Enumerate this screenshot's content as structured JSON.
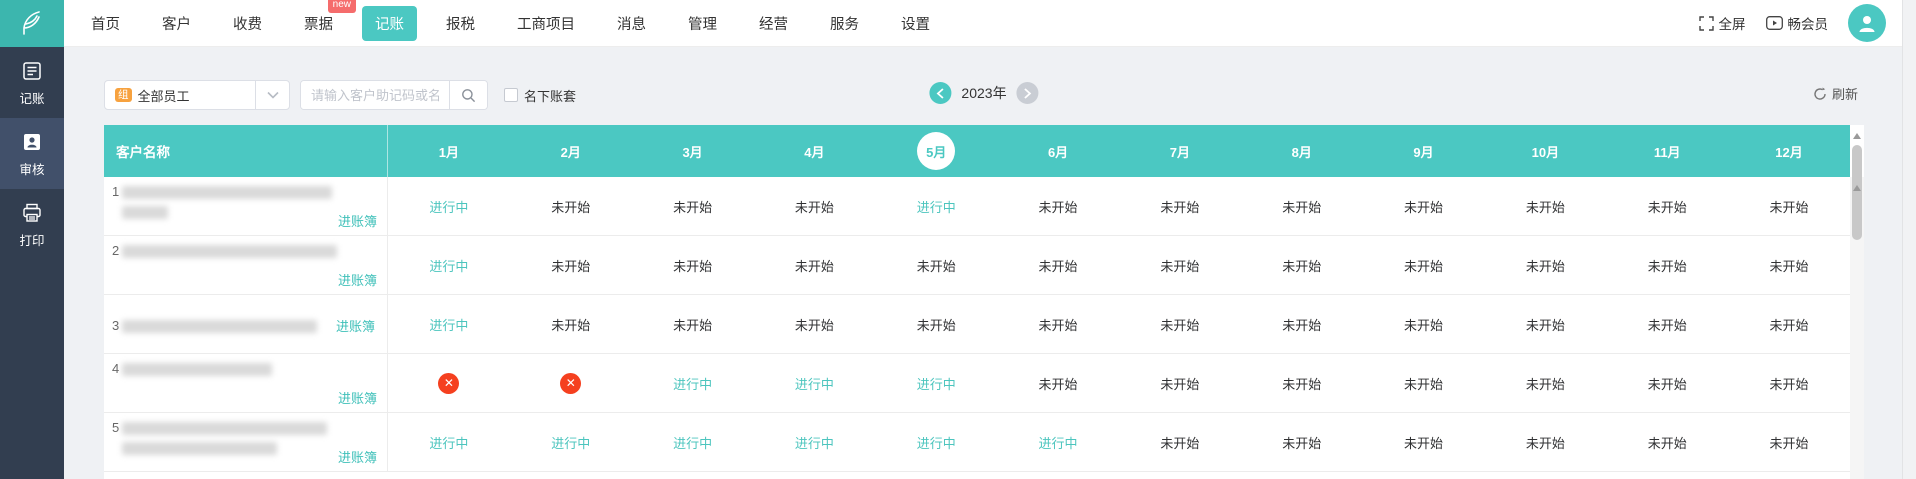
{
  "nav": {
    "items": [
      {
        "label": "首页"
      },
      {
        "label": "客户"
      },
      {
        "label": "收费"
      },
      {
        "label": "票据",
        "badge": "new"
      },
      {
        "label": "记账",
        "active": true
      },
      {
        "label": "报税"
      },
      {
        "label": "工商项目"
      },
      {
        "label": "消息"
      },
      {
        "label": "管理"
      },
      {
        "label": "经营"
      },
      {
        "label": "服务"
      },
      {
        "label": "设置"
      }
    ],
    "right": {
      "fullscreen_label": "全屏",
      "member_label": "畅会员"
    }
  },
  "sidebar": {
    "items": [
      {
        "label": "记账",
        "icon": "ledger-icon",
        "active": false
      },
      {
        "label": "审核",
        "icon": "audit-person-icon",
        "active": true
      },
      {
        "label": "打印",
        "icon": "printer-icon",
        "active": false
      }
    ]
  },
  "filters": {
    "employee_dropdown": {
      "badge": "组",
      "value": "全部员工"
    },
    "search_placeholder": "请输入客户助记码或名称",
    "checkbox_label": "名下账套",
    "year": "2023年",
    "refresh_label": "刷新"
  },
  "table": {
    "name_header": "客户名称",
    "months": [
      "1月",
      "2月",
      "3月",
      "4月",
      "5月",
      "6月",
      "7月",
      "8月",
      "9月",
      "10月",
      "11月",
      "12月"
    ],
    "active_month_index": 4,
    "status_labels": {
      "in_progress": "进行中",
      "not_started": "未开始",
      "error": "✕"
    },
    "rows": [
      {
        "number": "1",
        "redacted": true,
        "name_line_widths": [
          210,
          46
        ],
        "link": "进账簿",
        "link_inline": false,
        "statuses": [
          "in_progress",
          "not_started",
          "not_started",
          "not_started",
          "in_progress",
          "not_started",
          "not_started",
          "not_started",
          "not_started",
          "not_started",
          "not_started",
          "not_started"
        ]
      },
      {
        "number": "2",
        "redacted": true,
        "name_line_widths": [
          215
        ],
        "link": "进账簿",
        "link_inline": false,
        "statuses": [
          "in_progress",
          "not_started",
          "not_started",
          "not_started",
          "not_started",
          "not_started",
          "not_started",
          "not_started",
          "not_started",
          "not_started",
          "not_started",
          "not_started"
        ]
      },
      {
        "number": "3",
        "redacted": true,
        "name_line_widths": [
          195
        ],
        "link": "进账簿",
        "link_inline": true,
        "statuses": [
          "in_progress",
          "not_started",
          "not_started",
          "not_started",
          "not_started",
          "not_started",
          "not_started",
          "not_started",
          "not_started",
          "not_started",
          "not_started",
          "not_started"
        ]
      },
      {
        "number": "4",
        "redacted": true,
        "name_line_widths": [
          150
        ],
        "link": "进账簿",
        "link_inline": false,
        "statuses": [
          "error",
          "error",
          "in_progress",
          "in_progress",
          "in_progress",
          "not_started",
          "not_started",
          "not_started",
          "not_started",
          "not_started",
          "not_started",
          "not_started"
        ]
      },
      {
        "number": "5",
        "redacted": true,
        "name_line_widths": [
          205,
          155
        ],
        "link": "进账簿",
        "link_inline": false,
        "statuses": [
          "in_progress",
          "in_progress",
          "in_progress",
          "in_progress",
          "in_progress",
          "in_progress",
          "not_started",
          "not_started",
          "not_started",
          "not_started",
          "not_started",
          "not_started"
        ]
      }
    ]
  },
  "colors": {
    "brand_teal": "#4bc8c2",
    "logo_teal": "#3cb6ae",
    "sidebar_bg": "#323e50",
    "sidebar_active_bg": "#41506a",
    "status_in_progress": "#4cc5be",
    "status_not_started": "#303133",
    "error_red": "#f5401f",
    "new_badge_red": "#f56c6c",
    "group_badge_orange": "#f7a23f",
    "link_teal": "#3fc0b9",
    "page_bg": "#eff1f4"
  }
}
